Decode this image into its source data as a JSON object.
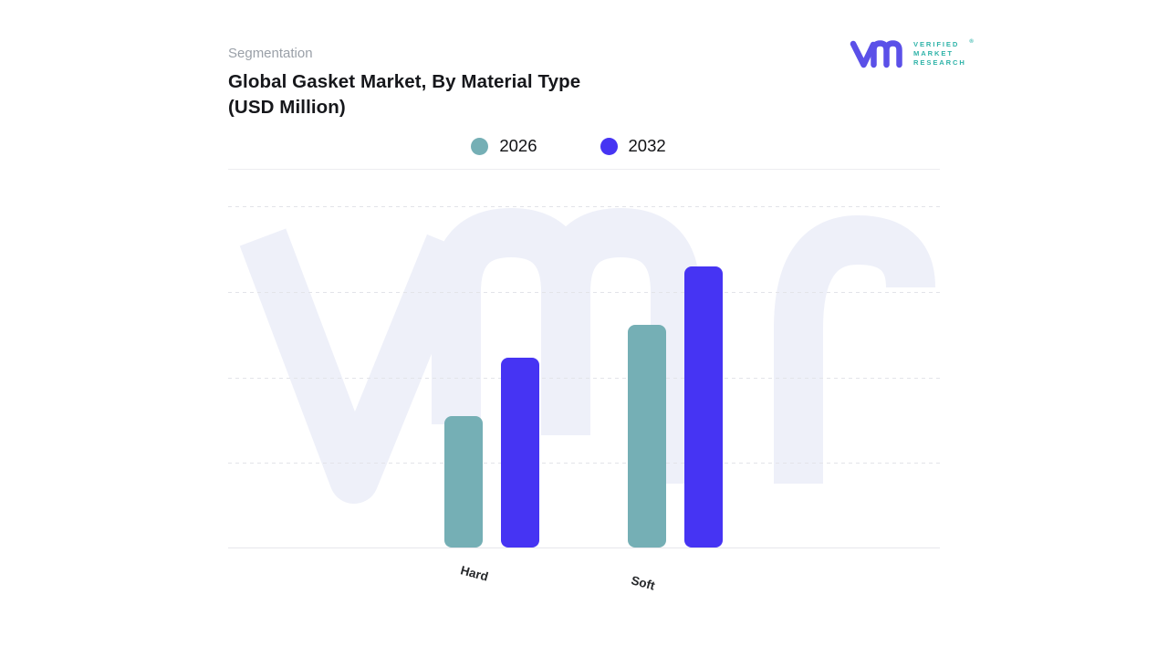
{
  "header": {
    "eyebrow": "Segmentation",
    "title_line1": "Global Gasket Market, By Material Type",
    "title_line2": "(USD Million)"
  },
  "logo": {
    "brand_lines": [
      "VERIFIED",
      "MARKET",
      "RESEARCH"
    ],
    "registered_mark": "®",
    "mark_color": "#5b50e8",
    "text_color": "#2fb3a9"
  },
  "chart_data": {
    "type": "bar",
    "title": "Global Gasket Market, By Material Type (USD Million)",
    "categories": [
      "Hard",
      "Soft"
    ],
    "series": [
      {
        "name": "2026",
        "color": "#75afb5",
        "values": [
          1.54,
          2.6
        ]
      },
      {
        "name": "2032",
        "color": "#4634f3",
        "values": [
          2.22,
          3.29
        ]
      }
    ],
    "xlabel": "",
    "ylabel": "",
    "ylim": [
      0,
      4.44
    ],
    "y_axis_labeled": false,
    "grid": "horizontal-dashed",
    "legend_position": "top-center",
    "note": "values estimated in gridline units; no numeric y-axis ticks shown"
  },
  "colors": {
    "watermark": "#eef0f9",
    "gridline": "#e3e4e9",
    "baseline": "#e7e7eb",
    "eyebrow_text": "#9aa0a8",
    "title_text": "#16171b"
  }
}
